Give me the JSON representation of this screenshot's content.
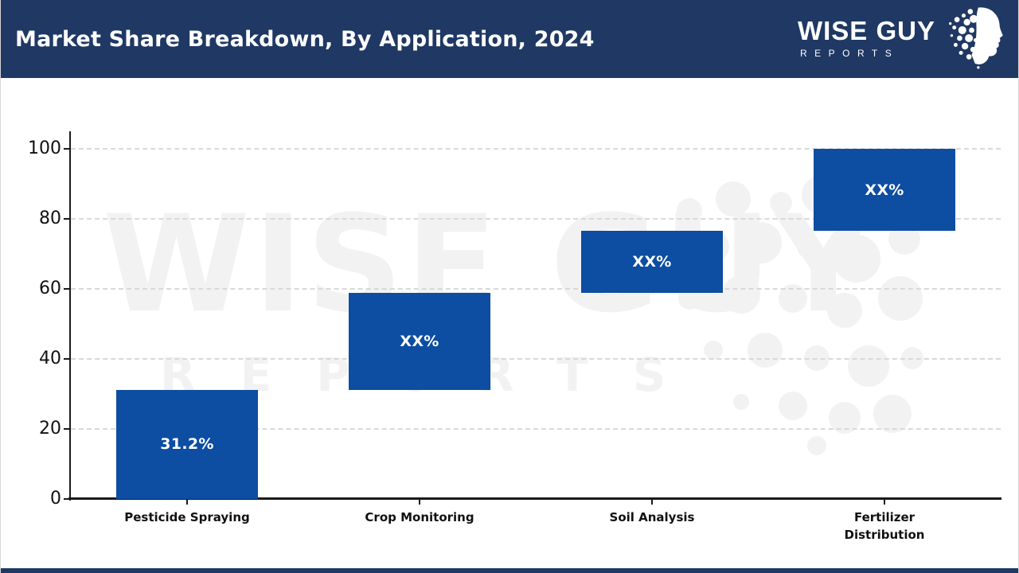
{
  "header": {
    "title": "Market Share Breakdown, By Application, 2024",
    "logo": {
      "line1": "WISE GUY",
      "line2": "REPORTS"
    }
  },
  "watermark": {
    "line1": "WISE GUY",
    "line2": "REPORTS"
  },
  "colors": {
    "header_bg": "#1f3864",
    "footer_bar": "#1f3864",
    "bar": "#0d4da2",
    "bar_label": "#ffffff",
    "axis": "#1a1a1a",
    "tick_label": "#111111",
    "gridline": "#d9d9d9",
    "watermark": "#f2f2f2",
    "background": "#ffffff"
  },
  "chart_data": {
    "type": "bar",
    "subtype": "waterfall",
    "title": "Market Share Breakdown, By Application, 2024",
    "categories": [
      "Pesticide Spraying",
      "Crop Monitoring",
      "Soil Analysis",
      "Fertilizer Distribution"
    ],
    "segments": [
      {
        "category": "Pesticide Spraying",
        "start": 0,
        "end": 31.2,
        "label": "31.2%"
      },
      {
        "category": "Crop Monitoring",
        "start": 31.2,
        "end": 58.8,
        "label": "XX%"
      },
      {
        "category": "Soil Analysis",
        "start": 58.8,
        "end": 76.5,
        "label": "XX%"
      },
      {
        "category": "Fertilizer Distribution",
        "start": 76.5,
        "end": 100,
        "label": "XX%"
      }
    ],
    "ylim": [
      0,
      100
    ],
    "yticks": [
      0,
      20,
      40,
      60,
      80,
      100
    ],
    "grid": "horizontal-dashed",
    "legend": "none",
    "value_labels_position": "center-of-bar"
  }
}
